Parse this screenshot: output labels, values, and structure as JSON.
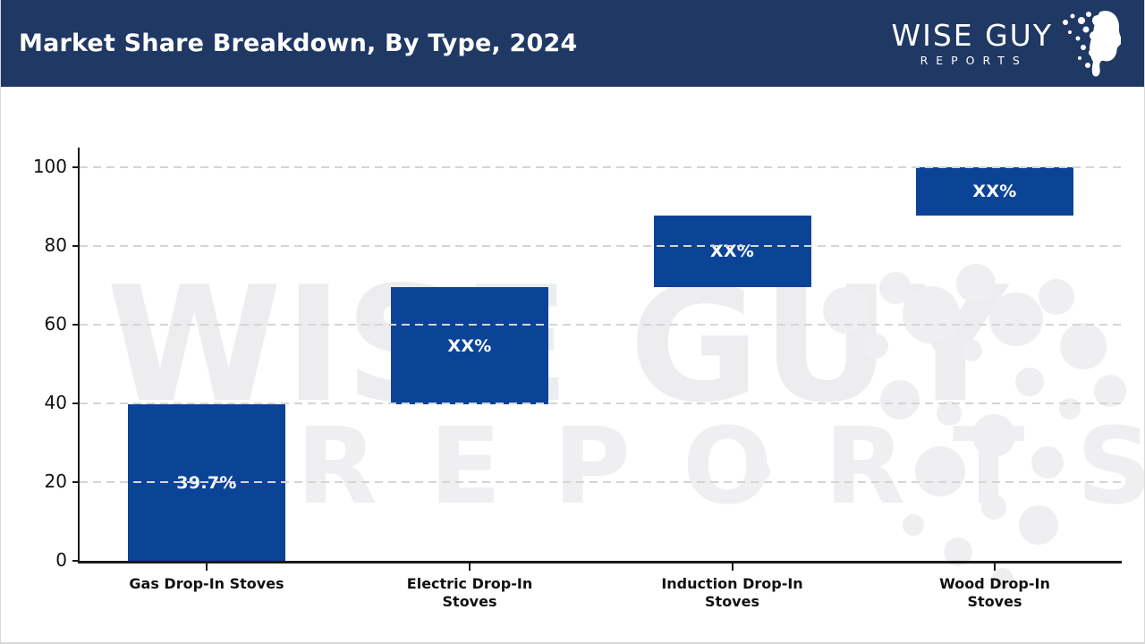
{
  "header": {
    "title": "Market Share Breakdown, By Type, 2024",
    "bg_color": "#1f3864",
    "logo": {
      "line1": "WISE GUY",
      "line2": "REPORTS"
    }
  },
  "watermark": {
    "line1": "WISE GUY",
    "line2": "REPORTS"
  },
  "chart_data": {
    "type": "bar",
    "subtype": "waterfall",
    "title": "Market Share Breakdown, By Type, 2024",
    "categories": [
      "Gas Drop-In Stoves",
      "Electric Drop-In Stoves",
      "Induction Drop-In Stoves",
      "Wood Drop-In Stoves"
    ],
    "category_label_lines": [
      [
        "Gas Drop-In Stoves"
      ],
      [
        "Electric Drop-In",
        "Stoves"
      ],
      [
        "Induction Drop-In",
        "Stoves"
      ],
      [
        "Wood Drop-In",
        "Stoves"
      ]
    ],
    "segments": [
      {
        "start": 0,
        "end": 39.7,
        "label": "39.7%"
      },
      {
        "start": 39.7,
        "end": 69.6,
        "label": "XX%"
      },
      {
        "start": 69.6,
        "end": 87.7,
        "label": "XX%"
      },
      {
        "start": 87.7,
        "end": 100,
        "label": "XX%"
      }
    ],
    "y_ticks": [
      0,
      20,
      40,
      60,
      80,
      100
    ],
    "ylim": [
      0,
      105
    ],
    "xlabel": "",
    "ylabel": "",
    "grid": true,
    "grid_style": "dashed",
    "legend": false,
    "bar_color": "#0b4397",
    "axis_color": "#1a1a1a",
    "grid_color": "#d5d5d5",
    "label_color": "#ffffff"
  }
}
